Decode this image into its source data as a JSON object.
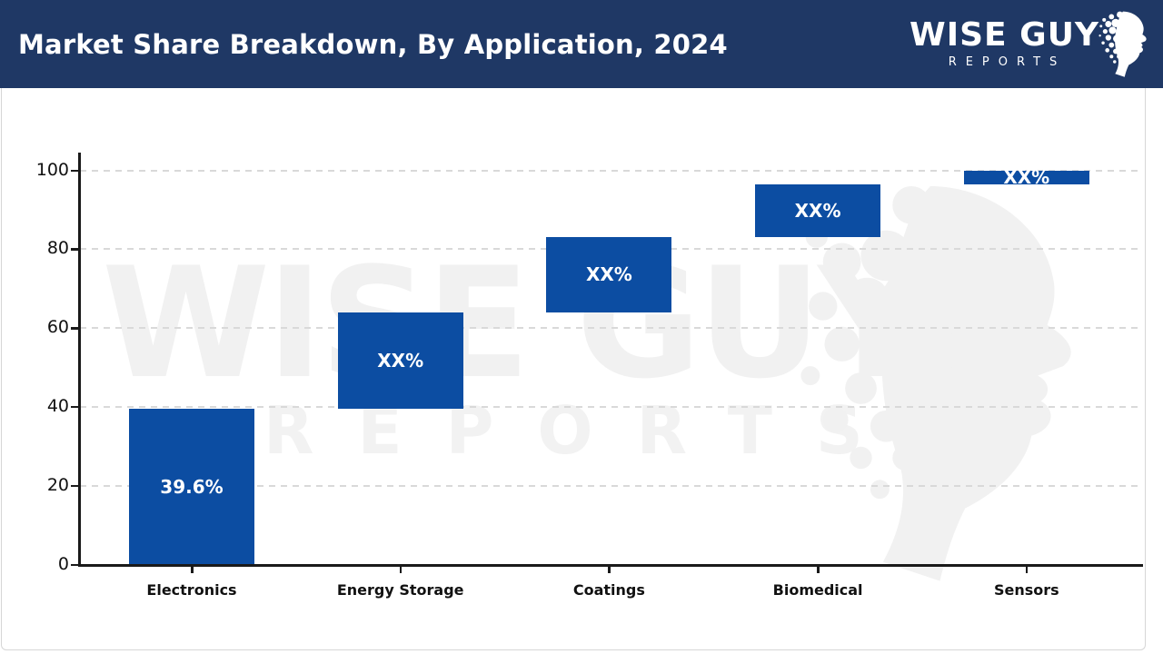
{
  "header": {
    "title": "Market Share Breakdown, By Application, 2024",
    "logo": {
      "line1": "WISE GUY",
      "line2": "REPORTS"
    }
  },
  "watermark": {
    "line1": "WISE GUY",
    "line2": "REPORTS"
  },
  "colors": {
    "header_bg": "#1f3865",
    "bar": "#0c4da2",
    "bar_label": "#ffffff",
    "grid": "#d9d9d9",
    "axis": "#1a1a1a",
    "watermark": "#f1f1f1",
    "panel_border": "#d6d6d6"
  },
  "chart_data": {
    "type": "bar",
    "subtype": "waterfall",
    "title": "Market Share Breakdown, By Application, 2024",
    "xlabel": "",
    "ylabel": "",
    "categories": [
      "Electronics",
      "Energy Storage",
      "Coatings",
      "Biomedical",
      "Sensors"
    ],
    "segments": [
      {
        "category": "Electronics",
        "start": 0,
        "end": 39.6,
        "label": "39.6%"
      },
      {
        "category": "Energy Storage",
        "start": 39.6,
        "end": 64.0,
        "label": "XX%"
      },
      {
        "category": "Coatings",
        "start": 64.0,
        "end": 83.0,
        "label": "XX%"
      },
      {
        "category": "Biomedical",
        "start": 83.0,
        "end": 96.4,
        "label": "XX%"
      },
      {
        "category": "Sensors",
        "start": 96.4,
        "end": 100.0,
        "label": "XX%"
      }
    ],
    "y_ticks": [
      0,
      20,
      40,
      60,
      80,
      100
    ],
    "ylim": [
      0,
      104.5
    ],
    "grid": "horizontal-dashed",
    "legend": "none"
  }
}
